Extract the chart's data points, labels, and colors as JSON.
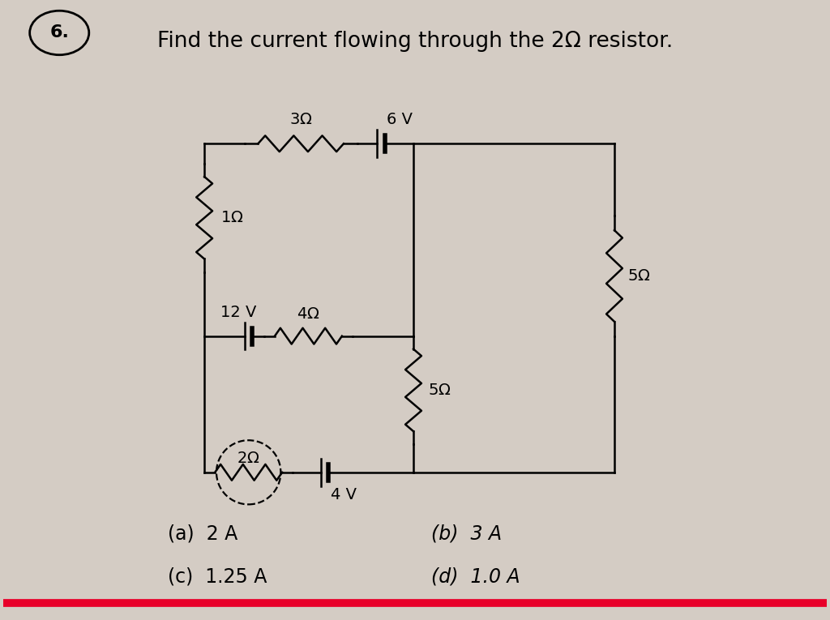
{
  "title": "Find the current flowing through the 2Ω resistor.",
  "question_number": "6.",
  "background_color": "#d4ccc4",
  "text_color": "#000000",
  "answer_a": "(a)  2 A",
  "answer_b": "(b)  3 A",
  "answer_c": "(c)  1.25 A",
  "answer_d": "(d)  1.0 A",
  "font_size_title": 19,
  "font_size_labels": 14,
  "font_size_answers": 17,
  "red_line_color": "#e8002a"
}
